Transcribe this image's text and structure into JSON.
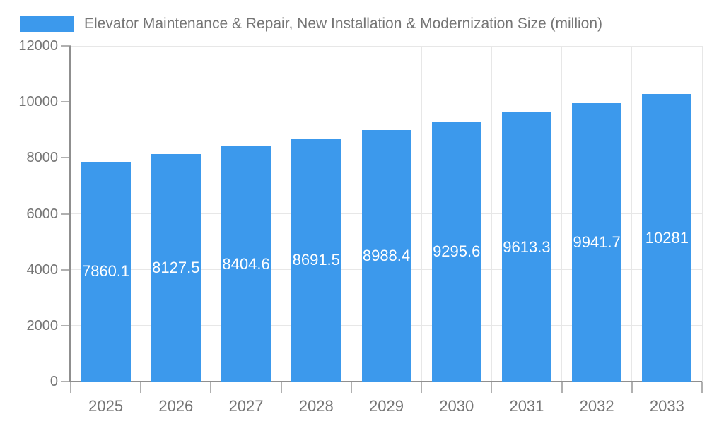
{
  "colors": {
    "bar": "#3C99EC",
    "bar_label": "#ffffff",
    "axis_line": "#8f8f8f",
    "grid_line": "#e7e7e7",
    "tick_mark": "#b0b0b0",
    "axis_text": "#757575",
    "background": "#ffffff"
  },
  "chart_data": {
    "type": "bar",
    "title": "Elevator Maintenance & Repair, New Installation & Modernization Size (million)",
    "categories": [
      "2025",
      "2026",
      "2027",
      "2028",
      "2029",
      "2030",
      "2031",
      "2032",
      "2033"
    ],
    "values": [
      7860.1,
      8127.5,
      8404.6,
      8691.5,
      8988.4,
      9295.6,
      9613.3,
      9941.7,
      10281
    ],
    "bar_labels": [
      "7860.1",
      "8127.5",
      "8404.6",
      "8691.5",
      "8988.4",
      "9295.6",
      "9613.3",
      "9941.7",
      "10281"
    ],
    "xlabel": "",
    "ylabel": "",
    "ylim": [
      0,
      12000
    ],
    "yticks": [
      0,
      2000,
      4000,
      6000,
      8000,
      10000,
      12000
    ],
    "ytick_labels": [
      "0",
      "2000",
      "4000",
      "6000",
      "8000",
      "10000",
      "12000"
    ],
    "grid": true,
    "legend_position": "top-left"
  }
}
